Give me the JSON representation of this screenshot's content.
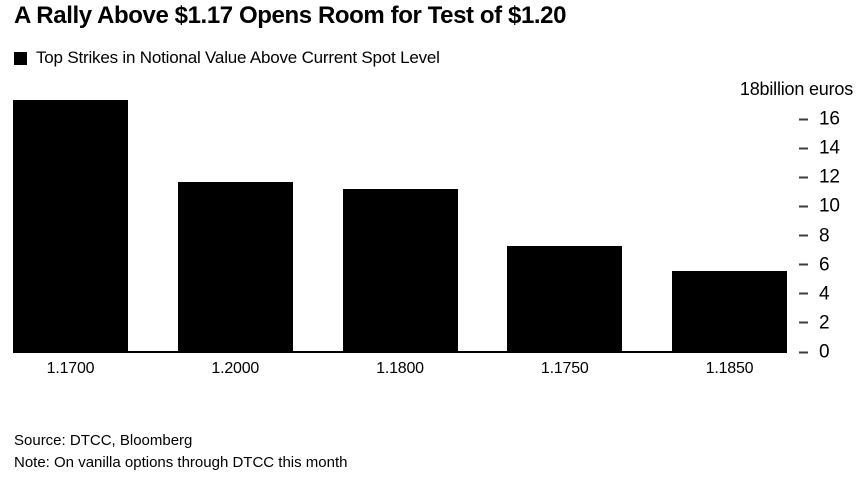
{
  "title": "A Rally Above $1.17 Opens Room for Test of $1.20",
  "legend": {
    "label": "Top Strikes in Notional Value Above Current Spot Level",
    "marker_color": "#000000"
  },
  "axis_unit_label": "18billion euros",
  "chart_data": {
    "type": "bar",
    "title": "A Rally Above $1.17 Opens Room for Test of $1.20",
    "categories": [
      "1.1700",
      "1.2000",
      "1.1800",
      "1.1750",
      "1.1850"
    ],
    "values": [
      17.3,
      11.7,
      11.2,
      7.3,
      5.6
    ],
    "series_name": "Top Strikes in Notional Value Above Current Spot Level",
    "xlabel": "",
    "ylabel": "billion euros",
    "ylim": [
      0,
      18
    ],
    "yticks": [
      0,
      2,
      4,
      6,
      8,
      10,
      12,
      14,
      16
    ],
    "ytick_side": "right",
    "bar_color": "#000000",
    "grid": false,
    "legend_position": "top-left"
  },
  "footer": {
    "source": "Source: DTCC, Bloomberg",
    "note": "Note: On vanilla options through DTCC this month"
  }
}
